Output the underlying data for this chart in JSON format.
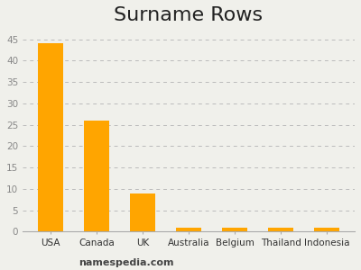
{
  "title": "Surname Rows",
  "categories": [
    "USA",
    "Canada",
    "UK",
    "Australia",
    "Belgium",
    "Thailand",
    "Indonesia"
  ],
  "values": [
    44,
    26,
    9,
    1,
    1,
    1,
    1
  ],
  "bar_color": "#FFA500",
  "ylim": [
    0,
    47
  ],
  "yticks": [
    0,
    5,
    10,
    15,
    20,
    25,
    30,
    35,
    40,
    45
  ],
  "grid_color": "#bbbbbb",
  "background_color": "#f0f0eb",
  "title_fontsize": 16,
  "tick_fontsize": 7.5,
  "watermark": "namespedia.com",
  "watermark_fontsize": 8
}
